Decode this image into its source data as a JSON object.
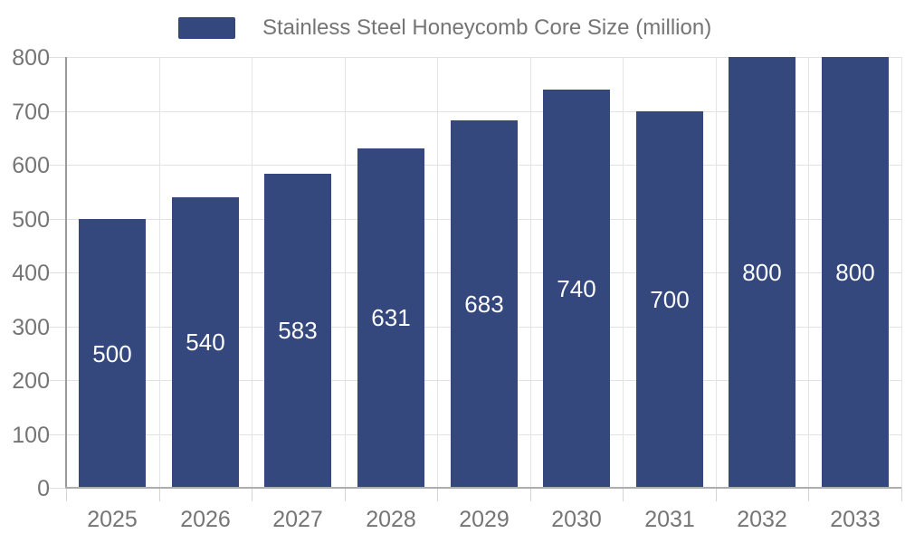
{
  "colors": {
    "bar": "#34487E",
    "axis_text": "#757575",
    "bar_label_text": "#ffffff",
    "grid": "#e2e2e2",
    "y_axis_line": "#9a9a9a",
    "x_axis_line": "#aeaeae"
  },
  "legend": {
    "label": "Stainless Steel Honeycomb Core Size (million)"
  },
  "chart_data": {
    "type": "bar",
    "title": "Stainless Steel Honeycomb Core Size (million)",
    "categories": [
      "2025",
      "2026",
      "2027",
      "2028",
      "2029",
      "2030",
      "2031",
      "2032",
      "2033"
    ],
    "values": [
      500,
      540,
      583,
      631,
      683,
      740,
      700,
      800,
      800
    ],
    "xlabel": "",
    "ylabel": "",
    "ylim": [
      0,
      800
    ],
    "ytick_step": 100,
    "ytick_labels": [
      "0",
      "100",
      "200",
      "300",
      "400",
      "500",
      "600",
      "700",
      "800"
    ],
    "grid": true,
    "legend_position": "top",
    "bar_labels_inside": true
  }
}
